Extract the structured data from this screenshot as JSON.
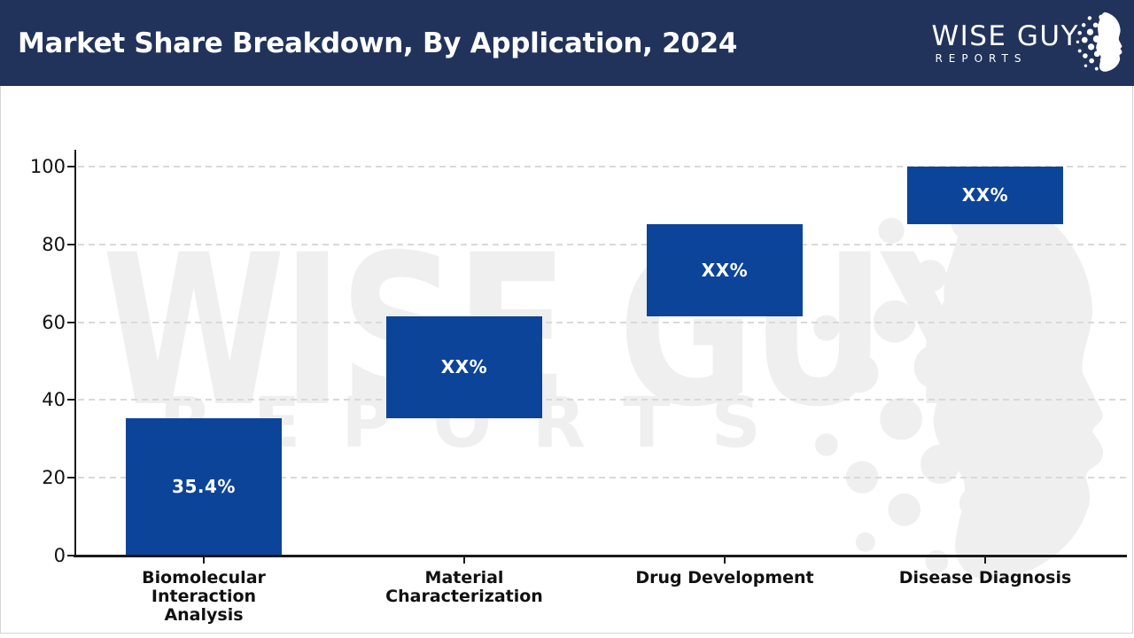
{
  "header": {
    "title": "Market Share Breakdown, By Application, 2024",
    "brand": {
      "name": "WISE GUY",
      "sub": "REPORTS"
    }
  },
  "watermark": {
    "line1": "WISE GUY",
    "line2": "REPORTS"
  },
  "colors": {
    "header_bg": "#21335a",
    "bar": "#0c4499",
    "bar_label": "#ffffff",
    "grid": "#d9d9d9",
    "axis": "#1a1a1a",
    "text": "#111111",
    "logo": "#ffffff",
    "watermark": "#efefef"
  },
  "chart_data": {
    "type": "bar",
    "subtype": "waterfall",
    "title": "Market Share Breakdown, By Application, 2024",
    "categories": [
      "Biomolecular Interaction Analysis",
      "Material Characterization",
      "Drug Development",
      "Disease Diagnosis"
    ],
    "category_lines": [
      [
        "Biomolecular",
        "Interaction",
        "Analysis"
      ],
      [
        "Material",
        "Characterization"
      ],
      [
        "Drug Development"
      ],
      [
        "Disease Diagnosis"
      ]
    ],
    "segments": [
      {
        "category": "Biomolecular Interaction Analysis",
        "start": 0,
        "end": 35.4,
        "label": "35.4%"
      },
      {
        "category": "Material Characterization",
        "start": 35.4,
        "end": 61.6,
        "label": "XX%"
      },
      {
        "category": "Drug Development",
        "start": 61.6,
        "end": 85.3,
        "label": "XX%"
      },
      {
        "category": "Disease Diagnosis",
        "start": 85.3,
        "end": 100,
        "label": "XX%"
      }
    ],
    "values_pct": [
      35.4,
      26.2,
      23.7,
      14.7
    ],
    "yticks": [
      0,
      20,
      40,
      60,
      80,
      100
    ],
    "ylim": [
      0,
      104
    ],
    "xlabel": "",
    "ylabel": "",
    "grid": "horizontal-dashed",
    "legend": "none"
  }
}
